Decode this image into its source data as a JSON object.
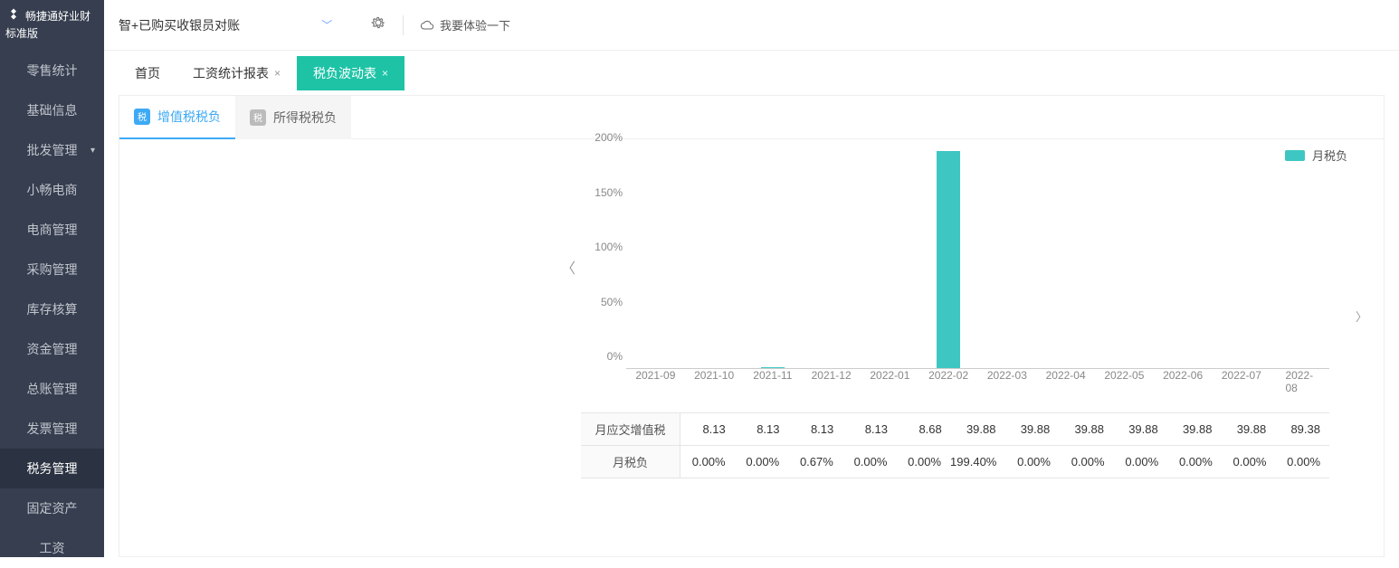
{
  "brand": {
    "name": "畅捷通好业财",
    "edition": "标准版"
  },
  "sidebar": {
    "items": [
      {
        "label": "零售统计"
      },
      {
        "label": "基础信息"
      },
      {
        "label": "批发管理",
        "has_sub": true
      },
      {
        "label": "小畅电商"
      },
      {
        "label": "电商管理"
      },
      {
        "label": "采购管理"
      },
      {
        "label": "库存核算"
      },
      {
        "label": "资金管理"
      },
      {
        "label": "总账管理"
      },
      {
        "label": "发票管理"
      },
      {
        "label": "税务管理",
        "active": true
      },
      {
        "label": "固定资产"
      },
      {
        "label": "工资"
      }
    ]
  },
  "topbar": {
    "context": "智+已购买收银员对账",
    "try_text": "我要体验一下"
  },
  "tabs": [
    {
      "label": "首页",
      "closable": false
    },
    {
      "label": "工资统计报表",
      "closable": true
    },
    {
      "label": "税负波动表",
      "closable": true,
      "active": true
    }
  ],
  "subtabs": [
    {
      "label": "增值税税负",
      "active": true
    },
    {
      "label": "所得税税负"
    }
  ],
  "chart": {
    "legend_label": "月税负",
    "legend_color": "#3ec7c2",
    "y_ticks": [
      "0%",
      "50%",
      "100%",
      "150%",
      "200%"
    ],
    "y_max": 200,
    "categories": [
      "2021-09",
      "2021-10",
      "2021-11",
      "2021-12",
      "2022-01",
      "2022-02",
      "2022-03",
      "2022-04",
      "2022-05",
      "2022-06",
      "2022-07",
      "2022-08"
    ],
    "values": [
      0,
      0,
      0.67,
      0,
      0,
      199.4,
      0,
      0,
      0,
      0,
      0,
      0
    ],
    "bar_color": "#3ec7c2",
    "axis_text_color": "#888888"
  },
  "table": {
    "rows": [
      {
        "header": "月应交增值税",
        "cells": [
          "8.13",
          "8.13",
          "8.13",
          "8.13",
          "8.68",
          "39.88",
          "39.88",
          "39.88",
          "39.88",
          "39.88",
          "39.88",
          "89.38"
        ]
      },
      {
        "header": "月税负",
        "cells": [
          "0.00%",
          "0.00%",
          "0.67%",
          "0.00%",
          "0.00%",
          "199.40%",
          "0.00%",
          "0.00%",
          "0.00%",
          "0.00%",
          "0.00%",
          "0.00%"
        ]
      }
    ]
  }
}
